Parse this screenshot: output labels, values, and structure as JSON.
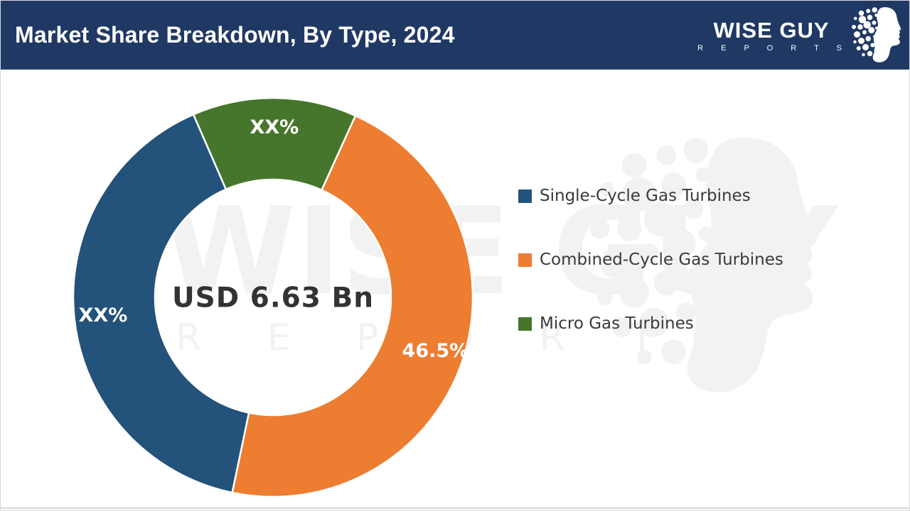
{
  "header": {
    "background_color": "#203864",
    "title": "Market Share Breakdown, By Type, 2024",
    "logo": {
      "name": "WISE GUY",
      "sub": "R E P O R T S"
    }
  },
  "chart_data": {
    "type": "pie",
    "variant": "donut",
    "title": "Market Share Breakdown, By Type, 2024",
    "center_label": "USD 6.63 Bn",
    "start_angle_deg": -23.5,
    "direction": "clockwise",
    "legend_position": "right",
    "label_color": "#ffffff",
    "center_label_color": "#333333",
    "separator_color": "#ffffff",
    "segments": [
      {
        "name": "Micro Gas Turbines",
        "value_pct": 13.3,
        "label": "XX%",
        "color": "#46762C"
      },
      {
        "name": "Combined-Cycle Gas Turbines",
        "value_pct": 46.5,
        "label": "46.5%",
        "color": "#ED7D31"
      },
      {
        "name": "Single-Cycle Gas Turbines",
        "value_pct": 40.2,
        "label": "XX%",
        "color": "#23527A"
      }
    ]
  },
  "legend": {
    "items": [
      {
        "label": "Single-Cycle Gas Turbines",
        "color": "#23527A"
      },
      {
        "label": "Combined-Cycle Gas Turbines",
        "color": "#ED7D31"
      },
      {
        "label": "Micro Gas Turbines",
        "color": "#46762C"
      }
    ]
  },
  "watermark": {
    "line1": "WISE GUY",
    "line2": "R E P O R T S"
  }
}
